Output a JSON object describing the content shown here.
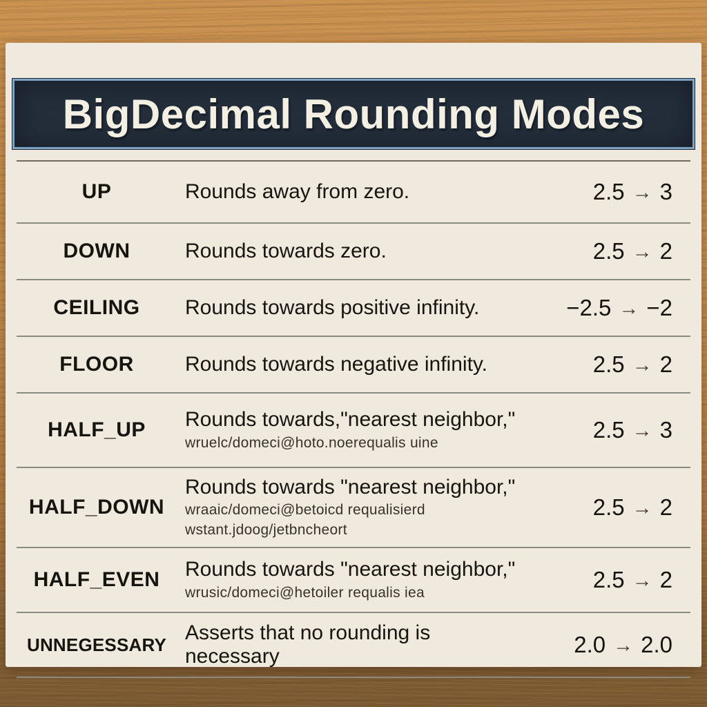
{
  "title": "BigDecimal Rounding Modes",
  "arrow": "→",
  "colors": {
    "header_bg": "#232e3a",
    "header_border": "#7fa3c4",
    "header_text": "#f4efe3",
    "card_bg": "#efe9de",
    "body_text": "#16150f",
    "subtext": "#36332b",
    "divider": "#8a8a80",
    "wood_top": "#c9914f",
    "wood_bottom": "#7a5931",
    "arrow": "#4a3b2b"
  },
  "rows": [
    {
      "mode": "UP",
      "desc": "Rounds away from zero.",
      "from": "2.5",
      "to": "3"
    },
    {
      "mode": "DOWN",
      "desc": "Rounds towards zero.",
      "from": "2.5",
      "to": "2"
    },
    {
      "mode": "CEILING",
      "desc": "Rounds towards positive infinity.",
      "from": "−2.5",
      "to": "−2"
    },
    {
      "mode": "FLOOR",
      "desc": "Rounds towards negative infinity.",
      "from": "2.5",
      "to": "2"
    },
    {
      "mode": "HALF_UP",
      "desc": "Rounds towards,\"nearest neighbor,\"",
      "sub": [
        "wruelc/domeci@hoto.noerequalis uine"
      ],
      "from": "2.5",
      "to": "3"
    },
    {
      "mode": "HALF_DOWN",
      "desc": "Rounds towards \"nearest neighbor,\"",
      "sub": [
        "wraaic/domeci@betoicd requalisierd",
        "wstant.jdoog/jetbncheort"
      ],
      "from": "2.5",
      "to": "2"
    },
    {
      "mode": "HALF_EVEN",
      "desc": "Rounds towards \"nearest neighbor,\"",
      "sub": [
        "wrusic/domeci@hetoiler requalis iea"
      ],
      "from": "2.5",
      "to": "2"
    },
    {
      "mode": "UNNEGESSARY",
      "desc": "Asserts that no rounding is necessary",
      "from": "2.0",
      "to": "2.0"
    }
  ]
}
